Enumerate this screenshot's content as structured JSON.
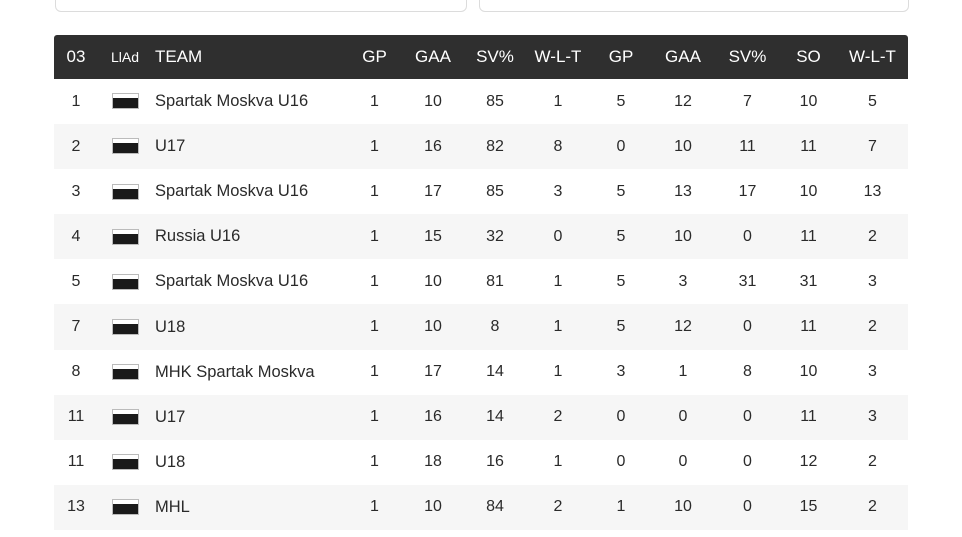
{
  "header": {
    "rank": "03",
    "flag": "LlAd",
    "team": "TEAM",
    "columns": [
      "GP",
      "GAA",
      "SV%",
      "W-L-T",
      "GP",
      "GAA",
      "SV%",
      "SO",
      "W-L-T"
    ]
  },
  "rows": [
    {
      "rank": "1",
      "team": "Spartak Moskva U16",
      "stats": [
        "1",
        "10",
        "85",
        "1",
        "5",
        "12",
        "7",
        "10",
        "5"
      ]
    },
    {
      "rank": "2",
      "team": "U17",
      "stats": [
        "1",
        "16",
        "82",
        "8",
        "0",
        "10",
        "11",
        "11",
        "7"
      ]
    },
    {
      "rank": "3",
      "team": "Spartak Moskva U16",
      "stats": [
        "1",
        "17",
        "85",
        "3",
        "5",
        "13",
        "17",
        "10",
        "13"
      ]
    },
    {
      "rank": "4",
      "team": "Russia U16",
      "stats": [
        "1",
        "15",
        "32",
        "0",
        "5",
        "10",
        "0",
        "11",
        "2"
      ]
    },
    {
      "rank": "5",
      "team": "Spartak Moskva U16",
      "stats": [
        "1",
        "10",
        "81",
        "1",
        "5",
        "3",
        "31",
        "31",
        "3"
      ]
    },
    {
      "rank": "7",
      "team": "U18",
      "stats": [
        "1",
        "10",
        "8",
        "1",
        "5",
        "12",
        "0",
        "11",
        "2"
      ]
    },
    {
      "rank": "8",
      "team": "MHK Spartak Moskva",
      "stats": [
        "1",
        "17",
        "14",
        "1",
        "3",
        "1",
        "8",
        "10",
        "3"
      ]
    },
    {
      "rank": "11",
      "team": "U17",
      "stats": [
        "1",
        "16",
        "14",
        "2",
        "0",
        "0",
        "0",
        "11",
        "3"
      ]
    },
    {
      "rank": "11",
      "team": "U18",
      "stats": [
        "1",
        "18",
        "16",
        "1",
        "0",
        "0",
        "0",
        "12",
        "2"
      ]
    },
    {
      "rank": "13",
      "team": "MHL",
      "stats": [
        "1",
        "10",
        "84",
        "2",
        "1",
        "10",
        "0",
        "15",
        "2"
      ]
    }
  ]
}
